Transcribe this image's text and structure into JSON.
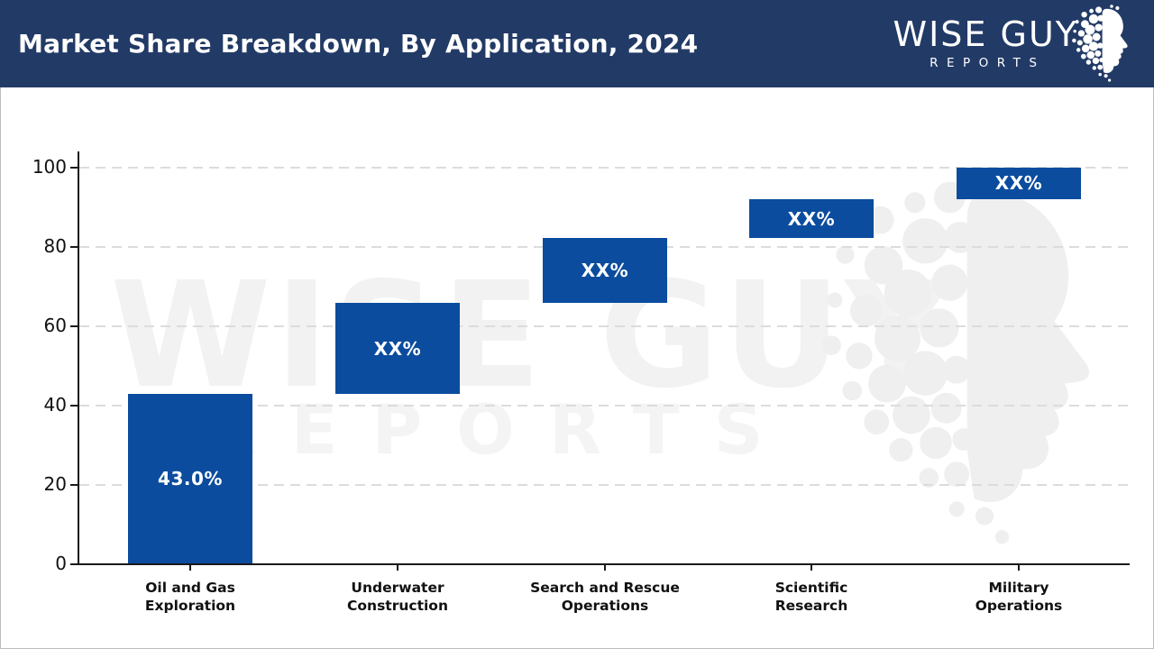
{
  "header": {
    "title": "Market Share Breakdown, By Application, 2024",
    "logo": {
      "wordmark": "WISE GUY",
      "subtext": "REPORTS"
    }
  },
  "watermark": {
    "wordmark": "WISE GUY",
    "subtext": "REPORTS"
  },
  "chart_data": {
    "type": "bar",
    "subtype": "waterfall",
    "title": "Market Share Breakdown, By Application, 2024",
    "categories": [
      "Oil and Gas Exploration",
      "Underwater Construction",
      "Search and Rescue Operations",
      "Scientific Research",
      "Military Operations"
    ],
    "category_lines": [
      [
        "Oil and Gas",
        "Exploration"
      ],
      [
        "Underwater",
        "Construction"
      ],
      [
        "Search and Rescue",
        "Operations"
      ],
      [
        "Scientific",
        "Research"
      ],
      [
        "Military",
        "Operations"
      ]
    ],
    "segments": [
      {
        "category": "Oil and Gas Exploration",
        "start": 0,
        "end": 43.0,
        "label": "43.0%"
      },
      {
        "category": "Underwater Construction",
        "start": 43.0,
        "end": 65.8,
        "label": "XX%"
      },
      {
        "category": "Search and Rescue Operations",
        "start": 65.8,
        "end": 82.2,
        "label": "XX%"
      },
      {
        "category": "Scientific Research",
        "start": 82.2,
        "end": 92.1,
        "label": "XX%"
      },
      {
        "category": "Military Operations",
        "start": 92.1,
        "end": 100.0,
        "label": "XX%"
      }
    ],
    "yticks": [
      0,
      20,
      40,
      60,
      80,
      100
    ],
    "ylim": [
      0,
      104
    ],
    "xlabel": "",
    "ylabel": "",
    "grid": "horizontal dashed",
    "legend": "none",
    "bar_color": "#0b4c9e",
    "bar_label_color": "#ffffff"
  },
  "colors": {
    "header_bg": "#223a66",
    "bar": "#0b4c9e",
    "axis": "#1a1a1a",
    "grid": "#dcdcdc",
    "watermark": "#f2f2f2"
  }
}
